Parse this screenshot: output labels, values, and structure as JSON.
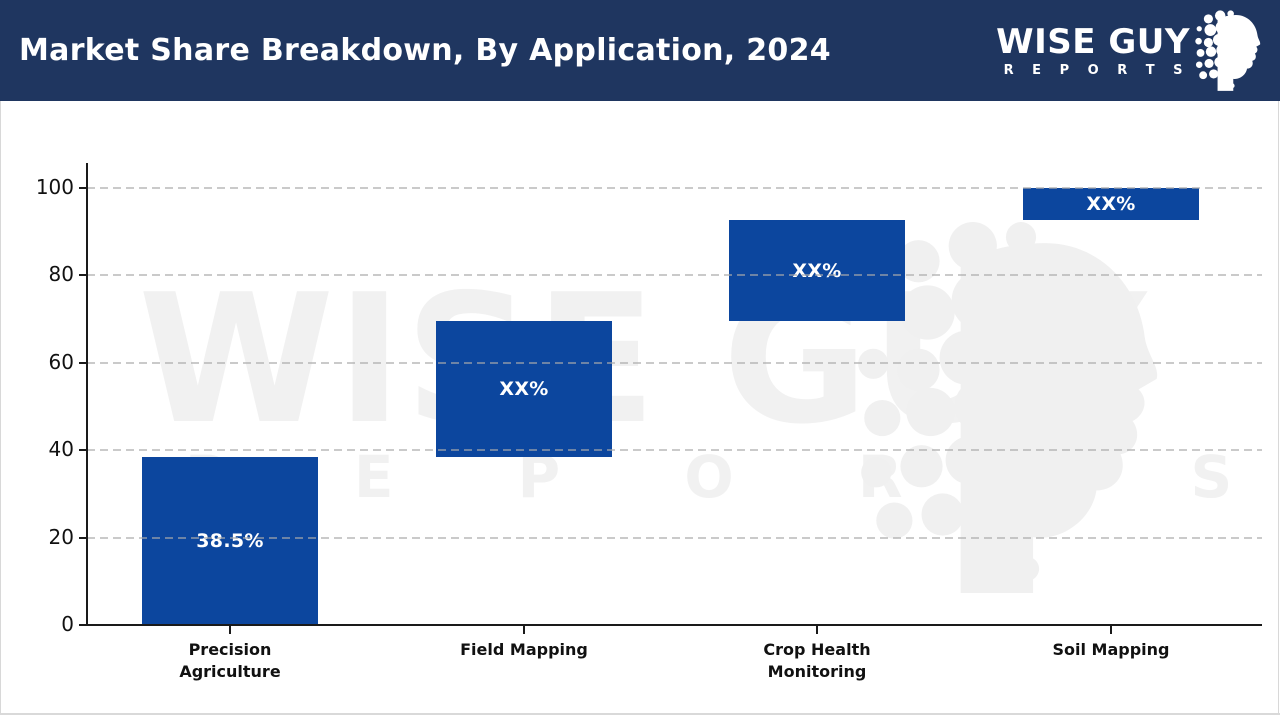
{
  "header": {
    "title": "Market Share Breakdown, By Application, 2024",
    "bg_color": "#1f3660",
    "text_color": "#ffffff",
    "logo": {
      "name": "WISE GUY",
      "subtitle": "R E P O R T S"
    }
  },
  "watermark": {
    "name": "WISE GUY",
    "subtitle": "R E P O R T S",
    "color": "#f1f1f1"
  },
  "chart_data": {
    "type": "bar",
    "variant": "waterfall",
    "title": "Market Share Breakdown, By Application, 2024",
    "categories": [
      "Precision\nAgriculture",
      "Field Mapping",
      "Crop Health\nMonitoring",
      "Soil Mapping"
    ],
    "segments": [
      {
        "name": "Precision Agriculture",
        "start": 0,
        "end": 38.5,
        "share": 38.5,
        "label": "38.5%"
      },
      {
        "name": "Field Mapping",
        "start": 38.5,
        "end": 69.5,
        "share": 31,
        "label": "XX%"
      },
      {
        "name": "Crop Health Monitoring",
        "start": 69.5,
        "end": 92.5,
        "share": 23,
        "label": "XX%"
      },
      {
        "name": "Soil Mapping",
        "start": 92.5,
        "end": 100,
        "share": 7.5,
        "label": "XX%"
      }
    ],
    "y_ticks": [
      0,
      20,
      40,
      60,
      80,
      100
    ],
    "ylim": [
      0,
      105
    ],
    "xlabel": "",
    "ylabel": "",
    "grid": true,
    "gridline_style": "dashed",
    "legend": false,
    "colors": {
      "bar": "#0c469e",
      "bar_label_text": "#ffffff",
      "gridline": "#d9d9d9",
      "axis": "#1a1a1a"
    }
  }
}
